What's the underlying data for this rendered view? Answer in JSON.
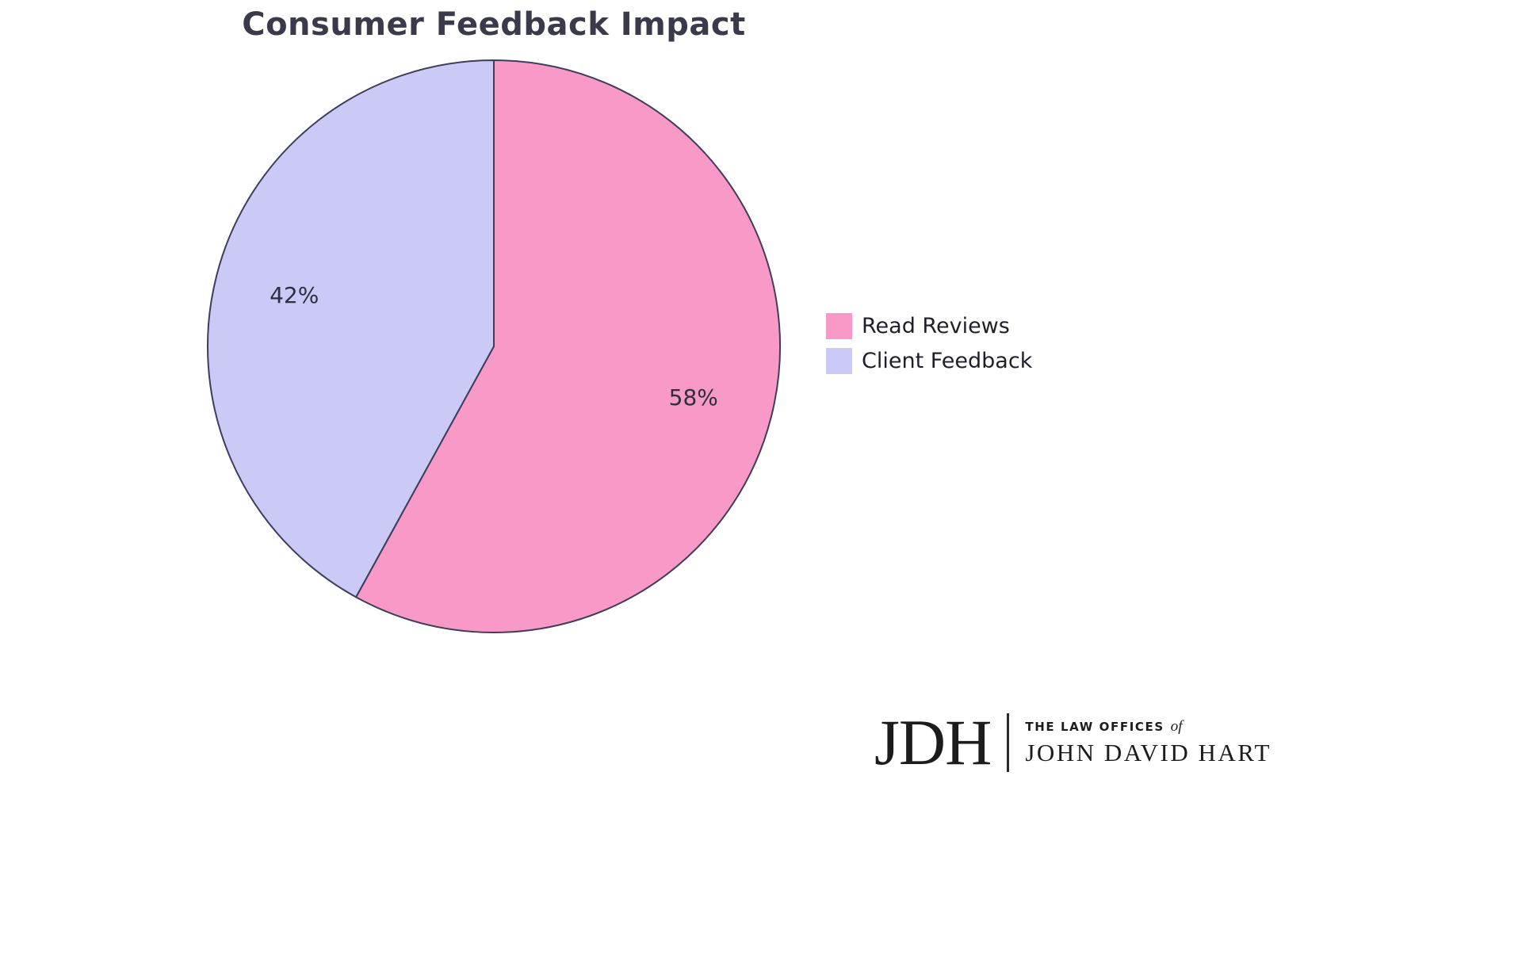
{
  "chart_data": {
    "type": "pie",
    "title": "Consumer Feedback Impact",
    "labels": [
      "Read Reviews",
      "Client Feedback"
    ],
    "values": [
      58,
      42
    ],
    "value_labels": [
      "58%",
      "42%"
    ],
    "colors": [
      "#F899C7",
      "#CBC9F5"
    ],
    "stroke_color": "#3D3D5C",
    "start_angle_deg": 0,
    "direction": "clockwise",
    "legend_position": "right"
  },
  "branding": {
    "monogram": "JDH",
    "tagline_prefix": "THE LAW OFFICES",
    "tagline_of": "of",
    "name": "JOHN DAVID HART"
  }
}
